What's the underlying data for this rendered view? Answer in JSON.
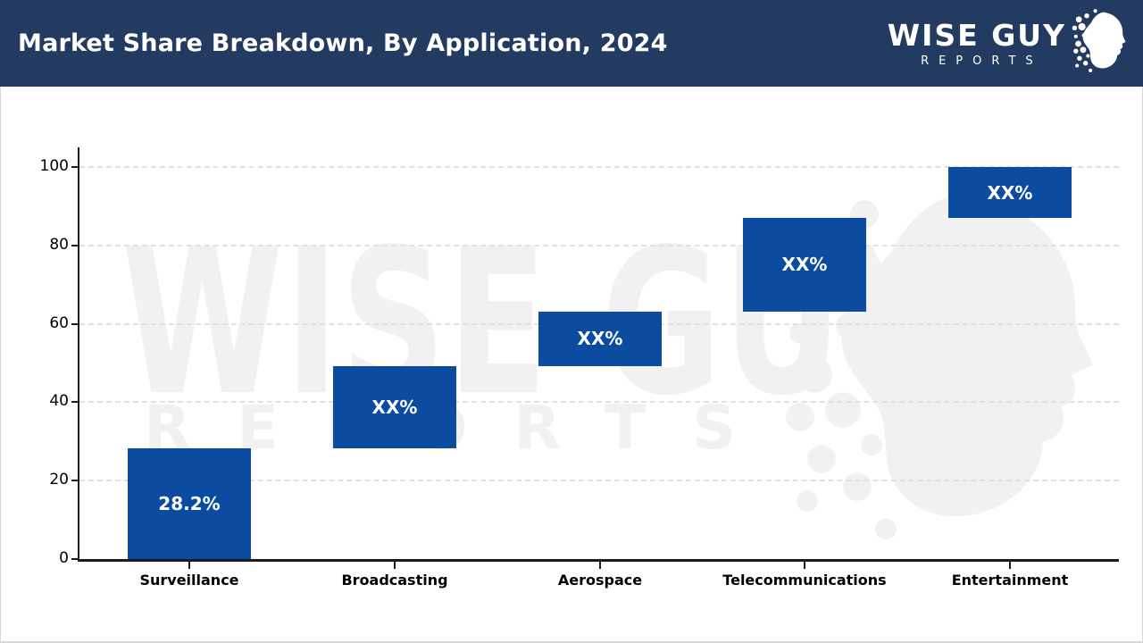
{
  "header": {
    "title": "Market Share Breakdown, By Application, 2024",
    "logo_line1": "WISE GUY",
    "logo_line2": "REPORTS"
  },
  "watermark": {
    "line1": "WISE GUY",
    "line2": "REPORTS"
  },
  "chart_data": {
    "type": "bar",
    "subtype": "waterfall",
    "title": "Market Share Breakdown, By Application, 2024",
    "categories": [
      "Surveillance",
      "Broadcasting",
      "Aerospace",
      "Telecommunications",
      "Entertainment"
    ],
    "bar_labels": [
      "28.2%",
      "XX%",
      "XX%",
      "XX%",
      "XX%"
    ],
    "segments": [
      [
        0,
        28.2
      ],
      [
        28.2,
        49.3
      ],
      [
        49.3,
        63.2
      ],
      [
        63.2,
        87.0
      ],
      [
        87.0,
        100.0
      ]
    ],
    "increments": [
      28.2,
      21.1,
      13.9,
      23.8,
      13.0
    ],
    "unit": "percent market share",
    "yticks": [
      0,
      20,
      40,
      60,
      80,
      100
    ],
    "ylim": [
      0,
      105
    ],
    "grid": "horizontal-dashed",
    "legend": "none",
    "colors": {
      "bar": "#0B4CA0",
      "header_bg": "#233A61",
      "grid": "#E1E1E1",
      "axis": "#1A1A1A",
      "bar_label_text": "#FFFFFF"
    }
  }
}
